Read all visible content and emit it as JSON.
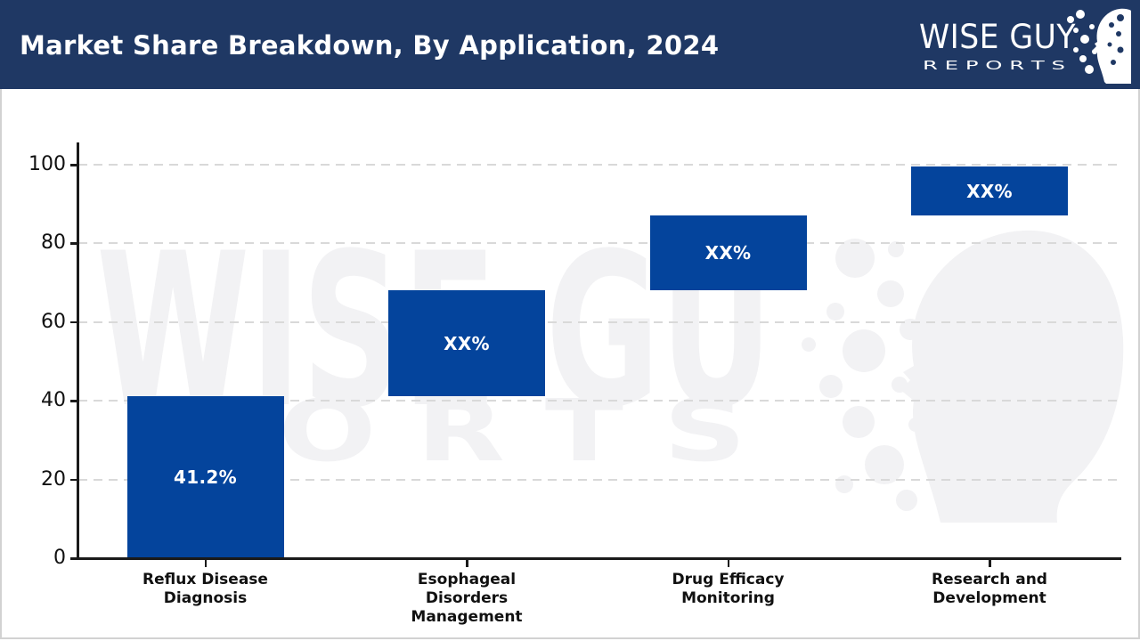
{
  "header": {
    "title": "Market Share Breakdown, By Application, 2024",
    "logo": {
      "wordmark": "WISE GUY",
      "subtitle": "R E P O R T S"
    }
  },
  "watermark": {
    "wordmark": "WISE GU",
    "subtitle": "P O R T S"
  },
  "colors": {
    "header_bg": "#1f3864",
    "bar": "#04449c",
    "bar_label": "#ffffff",
    "grid": "#d9d9d9",
    "axis": "#1a1a1a",
    "watermark": "#f2f2f4",
    "frame": "#d2d2d2"
  },
  "chart_data": {
    "type": "bar",
    "subtype": "waterfall",
    "title": "Market Share Breakdown, By Application, 2024",
    "categories": [
      "Reflux Disease Diagnosis",
      "Esophageal Disorders Management",
      "Drug Efficacy Monitoring",
      "Research and Development"
    ],
    "segments": [
      {
        "category": "Reflux Disease Diagnosis",
        "label_lines": [
          "Reflux Disease",
          "Diagnosis"
        ],
        "start": 0,
        "end": 41.2,
        "label": "41.2%"
      },
      {
        "category": "Esophageal Disorders Management",
        "label_lines": [
          "Esophageal",
          "Disorders",
          "Management"
        ],
        "start": 41.2,
        "end": 68,
        "label": "XX%"
      },
      {
        "category": "Drug Efficacy Monitoring",
        "label_lines": [
          "Drug Efficacy",
          "Monitoring"
        ],
        "start": 68,
        "end": 87,
        "label": "XX%"
      },
      {
        "category": "Research and Development",
        "label_lines": [
          "Research and",
          "Development"
        ],
        "start": 87,
        "end": 99.6,
        "label": "XX%"
      }
    ],
    "yticks": [
      0,
      20,
      40,
      60,
      80,
      100
    ],
    "ylim": [
      0,
      105.5
    ],
    "xlabel": "",
    "ylabel": "",
    "grid": "horizontal-dashed",
    "legend": "none"
  }
}
